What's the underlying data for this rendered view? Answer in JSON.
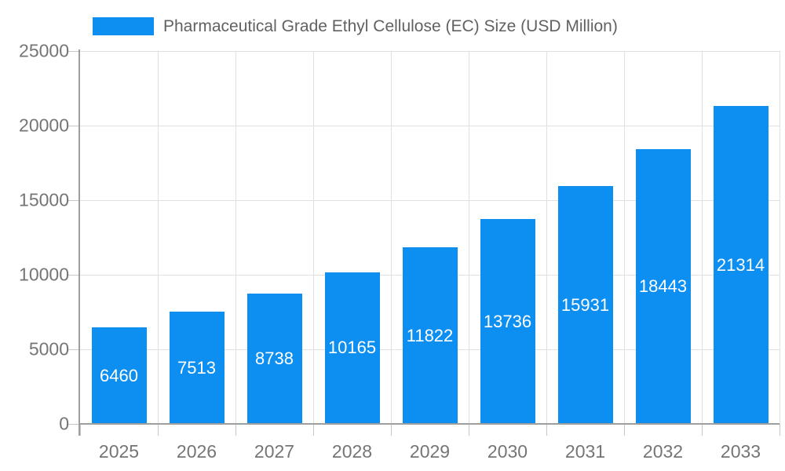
{
  "legend": {
    "label": "Pharmaceutical Grade Ethyl Cellulose (EC) Size (USD Million)"
  },
  "chart_data": {
    "type": "bar",
    "title": "Pharmaceutical Grade Ethyl Cellulose (EC) Size (USD Million)",
    "series_name": "Pharmaceutical Grade Ethyl Cellulose (EC) Size (USD Million)",
    "categories": [
      "2025",
      "2026",
      "2027",
      "2028",
      "2029",
      "2030",
      "2031",
      "2032",
      "2033"
    ],
    "values": [
      6460,
      7513,
      8738,
      10165,
      11822,
      13736,
      15931,
      18443,
      21314
    ],
    "xlabel": "",
    "ylabel": "",
    "ylim": [
      0,
      25000
    ],
    "yticks": [
      0,
      5000,
      10000,
      15000,
      20000,
      25000
    ],
    "grid": true,
    "legend_position": "top-left",
    "bar_labels_inside": true,
    "colors": {
      "bar": "#0d8ff2",
      "grid": "#e0e0e0",
      "axis": "#9e9e9e",
      "tick": "#c6c6c6",
      "tick_label": "#757575",
      "legend_label": "#616161",
      "bar_value_label": "#ffffff",
      "background": "#ffffff"
    }
  }
}
